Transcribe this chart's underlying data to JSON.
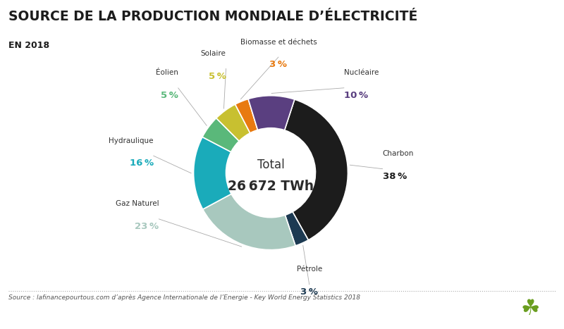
{
  "title": "SOURCE DE LA PRODUCTION MONDIALE D’ÉLECTRICITÉ",
  "subtitle": "EN 2018",
  "center_text_line1": "Total",
  "center_text_line2": "26 672 TWh",
  "source_text": "Source : lafinancepourtous.com d’après Agence Internationale de l’Energie - Key World Energy Statistics 2018",
  "slices": [
    {
      "label": "Charbon",
      "pct": 38,
      "color": "#1c1c1c",
      "pct_color": "#1c1c1c",
      "label_color": "#1c1c1c"
    },
    {
      "label": "Pétrole",
      "pct": 3,
      "color": "#1d3a52",
      "pct_color": "#1d3a52",
      "label_color": "#1c1c1c"
    },
    {
      "label": "Gaz Naturel",
      "pct": 23,
      "color": "#a8c8be",
      "pct_color": "#a8c8be",
      "label_color": "#1c1c1c"
    },
    {
      "label": "Hydraulique",
      "pct": 16,
      "color": "#1aabba",
      "pct_color": "#1aabba",
      "label_color": "#1c1c1c"
    },
    {
      "label": "Éolien",
      "pct": 5,
      "color": "#5ab87a",
      "pct_color": "#5ab87a",
      "label_color": "#1c1c1c"
    },
    {
      "label": "Solaire",
      "pct": 5,
      "color": "#c8c030",
      "pct_color": "#c8c030",
      "label_color": "#1c1c1c"
    },
    {
      "label": "Biomasse et déchets",
      "pct": 3,
      "color": "#e87a10",
      "pct_color": "#e87a10",
      "label_color": "#1c1c1c"
    },
    {
      "label": "Nucléaire",
      "pct": 10,
      "color": "#5a3f80",
      "pct_color": "#5a3f80",
      "label_color": "#1c1c1c"
    }
  ],
  "start_angle": 72,
  "bg_color": "#ffffff",
  "title_color": "#1c1c1c",
  "subtitle_color": "#1c1c1c",
  "donut_width": 0.42,
  "tree_color": "#6a9e20",
  "label_positions": {
    "Charbon": [
      1.45,
      0.05,
      "left"
    ],
    "Nucléaire": [
      0.95,
      1.1,
      "left"
    ],
    "Biomasse et déchets": [
      0.1,
      1.5,
      "center"
    ],
    "Solaire": [
      -0.58,
      1.35,
      "right"
    ],
    "Éolien": [
      -1.2,
      1.1,
      "right"
    ],
    "Hydraulique": [
      -1.52,
      0.22,
      "right"
    ],
    "Gaz Naturel": [
      -1.45,
      -0.6,
      "right"
    ],
    "Pétrole": [
      0.5,
      -1.45,
      "center"
    ]
  }
}
